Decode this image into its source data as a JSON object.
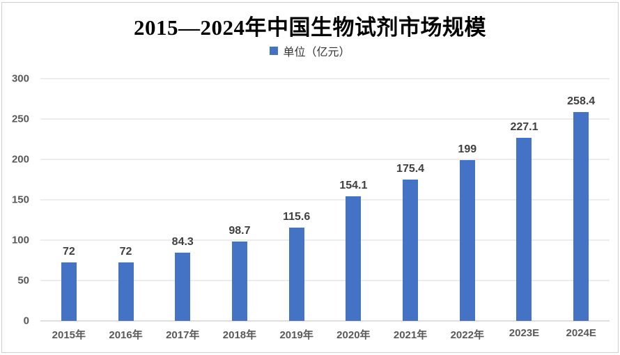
{
  "page": {
    "background": "#ffffff",
    "frame_border_color": "#cfcfcf"
  },
  "chart_data": {
    "type": "bar",
    "title": "2015—2024年中国生物试剂市场规模",
    "legend": {
      "label": "单位（亿元）",
      "position": "top"
    },
    "categories": [
      "2015年",
      "2016年",
      "2017年",
      "2018年",
      "2019年",
      "2020年",
      "2021年",
      "2022年",
      "2023E",
      "2024E"
    ],
    "values": [
      72,
      72,
      84.3,
      98.7,
      115.6,
      154.1,
      175.4,
      199,
      227.1,
      258.4
    ],
    "value_labels": [
      "72",
      "72",
      "84.3",
      "98.7",
      "115.6",
      "154.1",
      "175.4",
      "199",
      "227.1",
      "258.4"
    ],
    "xlabel": "",
    "ylabel": "",
    "ylim": [
      0,
      300
    ],
    "yticks": [
      0,
      50,
      100,
      150,
      200,
      250,
      300
    ],
    "grid": true,
    "colors": {
      "bar": "#4472C4",
      "gridline": "#D9D9D9",
      "axis_line": "#BFBFBF",
      "tick_label": "#595959",
      "data_label": "#404040"
    }
  }
}
